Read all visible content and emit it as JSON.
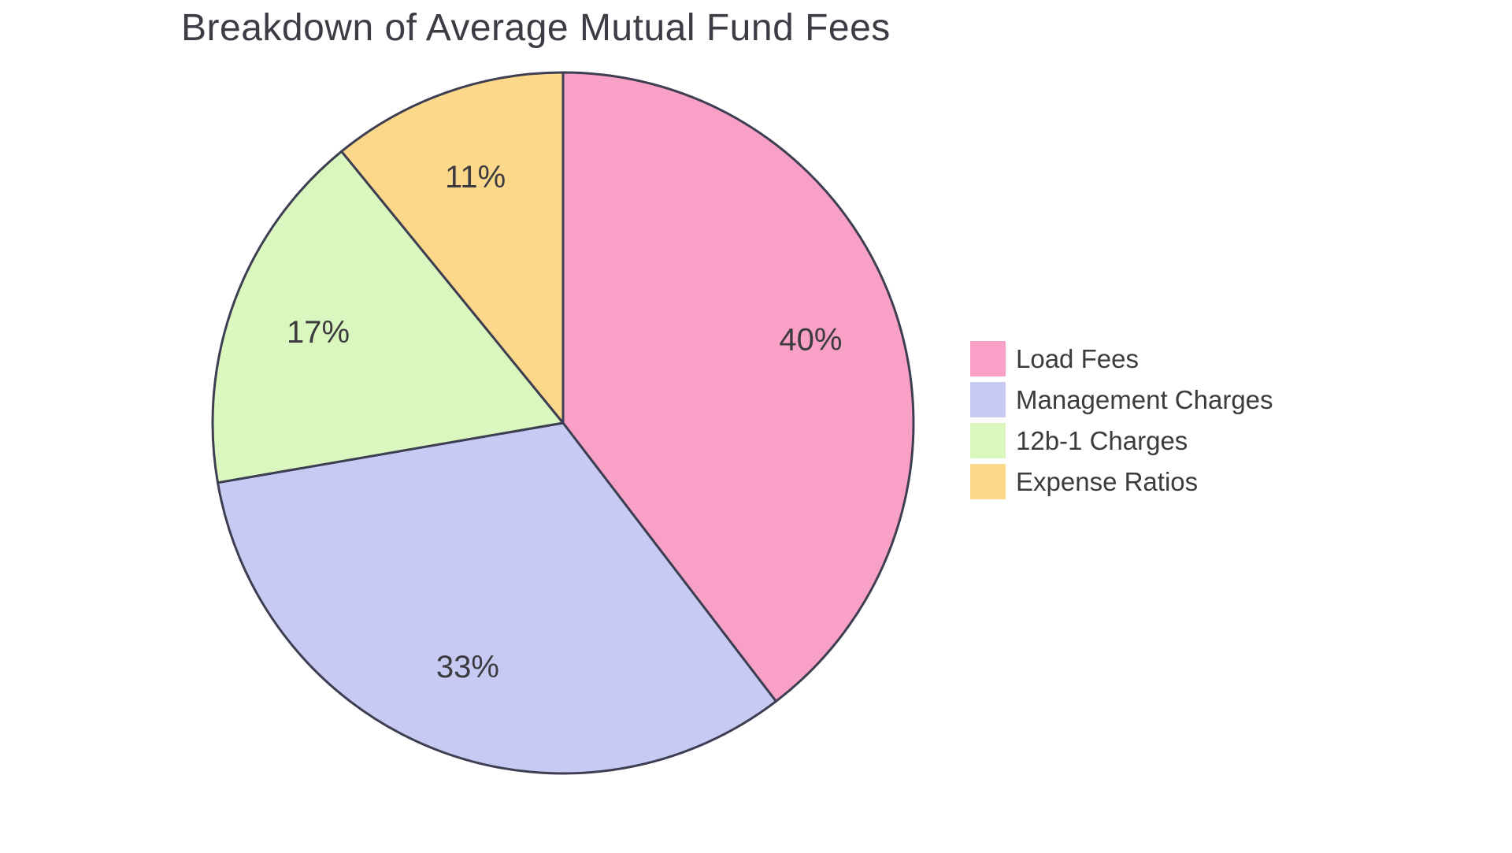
{
  "chart_data": {
    "type": "pie",
    "title": "Breakdown of Average Mutual Fund Fees",
    "labels": [
      "Load Fees",
      "Management Charges",
      "12b-1 Charges",
      "Expense Ratios"
    ],
    "values": [
      40,
      33,
      17,
      11
    ],
    "slice_labels": [
      "40%",
      "33%",
      "17%",
      "11%"
    ],
    "unit": "percent",
    "colors": [
      "#F9A0C7",
      "#C7CAF3",
      "#D9F7BE",
      "#FCD88A"
    ],
    "outline_color": "#3E3E52",
    "text_color": "#3B3B40",
    "start_angle_deg": 0,
    "direction": "clockwise",
    "legend_position": "right",
    "legend": [
      {
        "label": "Load Fees",
        "color": "#F9A0C7"
      },
      {
        "label": "Management Charges",
        "color": "#C7CAF3"
      },
      {
        "label": "12b-1 Charges",
        "color": "#D9F7BE"
      },
      {
        "label": "Expense Ratios",
        "color": "#FCD88A"
      }
    ]
  }
}
